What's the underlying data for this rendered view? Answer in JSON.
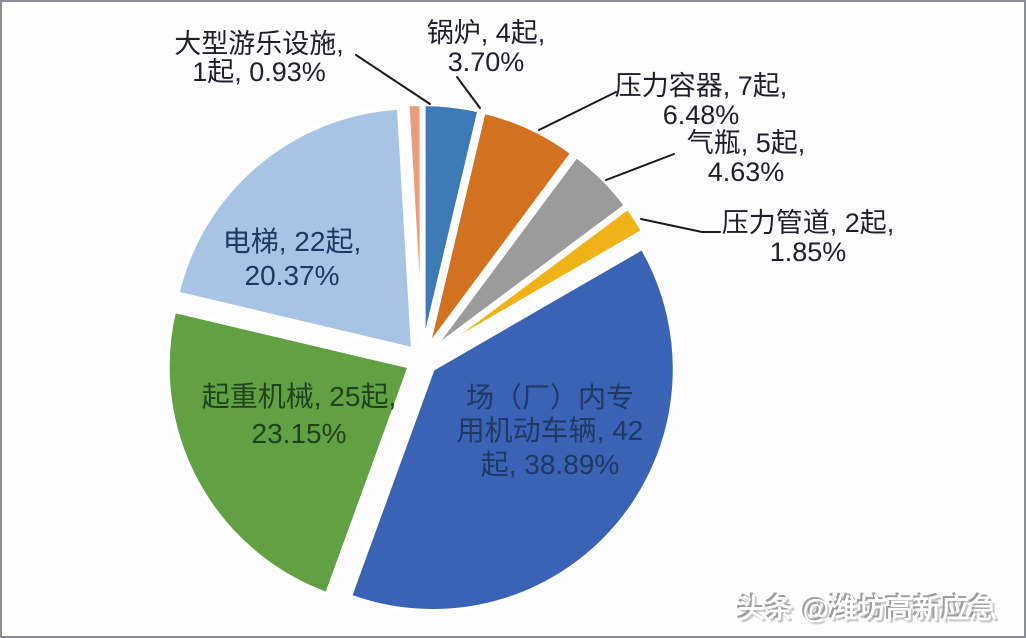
{
  "chart_data": {
    "type": "pie",
    "style": "exploded",
    "direction": "clockwise",
    "start_angle_deg": 0,
    "legend_position": "none",
    "slices": [
      {
        "name": "锅炉",
        "count_text": "4起",
        "value": 4,
        "pct": 3.7,
        "pct_text": "3.70%",
        "color": "#3E79B8",
        "label_lines": [
          "锅炉, 4起,",
          "3.70%"
        ],
        "label_color": "#20202A",
        "label_placement": "outside"
      },
      {
        "name": "压力容器",
        "count_text": "7起",
        "value": 7,
        "pct": 6.48,
        "pct_text": "6.48%",
        "color": "#D2711F",
        "label_lines": [
          "压力容器, 7起,",
          "6.48%"
        ],
        "label_color": "#20202A",
        "label_placement": "outside"
      },
      {
        "name": "气瓶",
        "count_text": "5起",
        "value": 5,
        "pct": 4.63,
        "pct_text": "4.63%",
        "color": "#9B9B9B",
        "label_lines": [
          "气瓶, 5起,",
          "4.63%"
        ],
        "label_color": "#20202A",
        "label_placement": "outside"
      },
      {
        "name": "压力管道",
        "count_text": "2起",
        "value": 2,
        "pct": 1.85,
        "pct_text": "1.85%",
        "color": "#EFB318",
        "label_lines": [
          "压力管道, 2起,",
          "1.85%"
        ],
        "label_color": "#20202A",
        "label_placement": "outside"
      },
      {
        "name": "场（厂）内专用机动车辆",
        "count_text": "42起",
        "value": 42,
        "pct": 38.89,
        "pct_text": "38.89%",
        "color": "#3A63B5",
        "label_lines": [
          "场（厂）内专",
          "用机动车辆, 42",
          "起, 38.89%"
        ],
        "label_color": "#1F3864",
        "label_placement": "inside"
      },
      {
        "name": "起重机械",
        "count_text": "25起",
        "value": 25,
        "pct": 23.15,
        "pct_text": "23.15%",
        "color": "#61A144",
        "label_lines": [
          "起重机械, 25起,",
          "23.15%"
        ],
        "label_color": "#1E431C",
        "label_placement": "inside"
      },
      {
        "name": "电梯",
        "count_text": "22起",
        "value": 22,
        "pct": 20.37,
        "pct_text": "20.37%",
        "color": "#A8C4E5",
        "label_lines": [
          "电梯, 22起,",
          "20.37%"
        ],
        "label_color": "#1F3864",
        "label_placement": "inside"
      },
      {
        "name": "大型游乐设施",
        "count_text": "1起",
        "value": 1,
        "pct": 0.93,
        "pct_text": "0.93%",
        "color": "#EC9C7C",
        "label_lines": [
          "大型游乐设施,",
          "1起, 0.93%"
        ],
        "label_color": "#20202A",
        "label_placement": "outside"
      }
    ]
  },
  "watermark": {
    "text": "头条 @潍坊高新应急"
  }
}
